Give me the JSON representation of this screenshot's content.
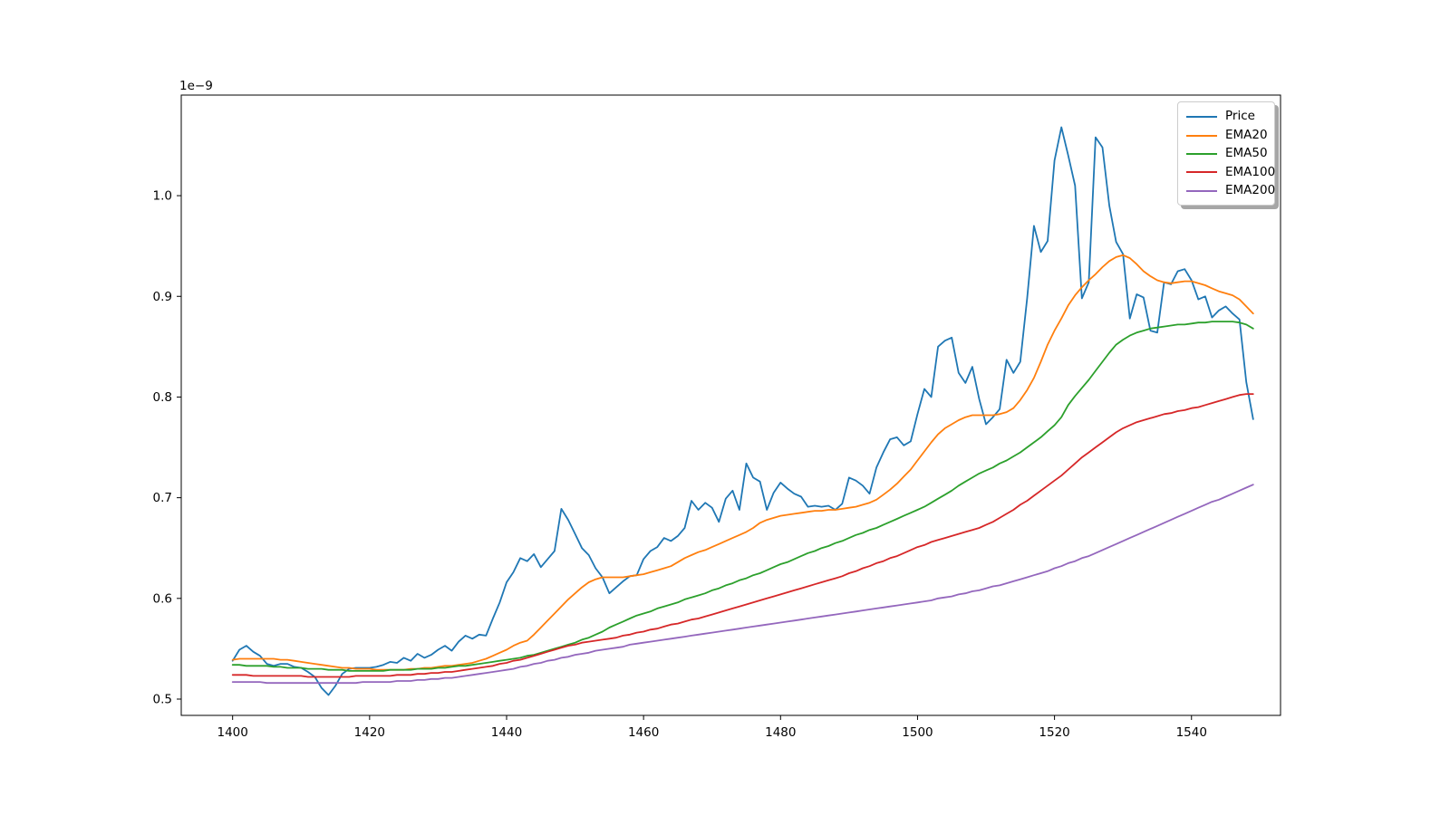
{
  "figure": {
    "background_color": "#ffffff",
    "spine_color": "#000000"
  },
  "chart_data": {
    "type": "line",
    "title": "",
    "xlabel": "",
    "ylabel": "",
    "y_offset_label": "1e−9",
    "y_unit_note": "y values are multiples of 1e-9",
    "grid": false,
    "legend_position": "upper right",
    "xlim": [
      1392.5,
      1553.0
    ],
    "ylim": [
      0.4838,
      1.0999
    ],
    "x_ticks": [
      "1400",
      "1420",
      "1440",
      "1460",
      "1480",
      "1500",
      "1520",
      "1540"
    ],
    "x_tick_values": [
      1400,
      1420,
      1440,
      1460,
      1480,
      1500,
      1520,
      1540
    ],
    "y_ticks": [
      "0.5",
      "0.6",
      "0.7",
      "0.8",
      "0.9",
      "1.0"
    ],
    "y_tick_values": [
      0.5,
      0.6,
      0.7,
      0.8,
      0.9,
      1.0
    ],
    "x_start": 1400,
    "x_step": 1,
    "series": [
      {
        "name": "Price",
        "color": "#1f77b4",
        "values": [
          0.538,
          0.549,
          0.553,
          0.547,
          0.543,
          0.535,
          0.533,
          0.535,
          0.535,
          0.532,
          0.531,
          0.527,
          0.522,
          0.511,
          0.504,
          0.513,
          0.525,
          0.53,
          0.531,
          0.531,
          0.531,
          0.532,
          0.534,
          0.537,
          0.536,
          0.541,
          0.538,
          0.545,
          0.541,
          0.544,
          0.549,
          0.553,
          0.548,
          0.557,
          0.563,
          0.56,
          0.564,
          0.563,
          0.58,
          0.596,
          0.616,
          0.626,
          0.64,
          0.637,
          0.644,
          0.631,
          0.639,
          0.647,
          0.689,
          0.678,
          0.664,
          0.65,
          0.643,
          0.63,
          0.621,
          0.605,
          0.611,
          0.617,
          0.622,
          0.623,
          0.639,
          0.647,
          0.651,
          0.66,
          0.657,
          0.662,
          0.67,
          0.697,
          0.688,
          0.695,
          0.69,
          0.676,
          0.699,
          0.707,
          0.688,
          0.734,
          0.72,
          0.716,
          0.688,
          0.705,
          0.715,
          0.709,
          0.704,
          0.701,
          0.691,
          0.692,
          0.691,
          0.692,
          0.688,
          0.694,
          0.72,
          0.717,
          0.712,
          0.704,
          0.73,
          0.745,
          0.758,
          0.76,
          0.752,
          0.756,
          0.783,
          0.808,
          0.8,
          0.85,
          0.856,
          0.859,
          0.824,
          0.814,
          0.83,
          0.798,
          0.773,
          0.78,
          0.788,
          0.837,
          0.824,
          0.835,
          0.898,
          0.97,
          0.944,
          0.955,
          1.035,
          1.068,
          1.04,
          1.01,
          0.898,
          0.914,
          1.058,
          1.048,
          0.99,
          0.954,
          0.942,
          0.878,
          0.902,
          0.899,
          0.866,
          0.864,
          0.914,
          0.912,
          0.925,
          0.927,
          0.916,
          0.897,
          0.9,
          0.879,
          0.886,
          0.89,
          0.883,
          0.877,
          0.815,
          0.778
        ]
      },
      {
        "name": "EMA20",
        "color": "#ff7f0e",
        "values": [
          0.539,
          0.54,
          0.54,
          0.54,
          0.54,
          0.54,
          0.54,
          0.539,
          0.539,
          0.538,
          0.537,
          0.536,
          0.535,
          0.534,
          0.533,
          0.532,
          0.531,
          0.531,
          0.53,
          0.53,
          0.53,
          0.529,
          0.529,
          0.529,
          0.529,
          0.529,
          0.53,
          0.53,
          0.531,
          0.531,
          0.532,
          0.533,
          0.533,
          0.534,
          0.535,
          0.536,
          0.538,
          0.54,
          0.543,
          0.546,
          0.549,
          0.553,
          0.556,
          0.558,
          0.564,
          0.571,
          0.578,
          0.585,
          0.592,
          0.599,
          0.605,
          0.611,
          0.616,
          0.619,
          0.621,
          0.621,
          0.621,
          0.621,
          0.622,
          0.623,
          0.624,
          0.626,
          0.628,
          0.63,
          0.632,
          0.636,
          0.64,
          0.643,
          0.646,
          0.648,
          0.651,
          0.654,
          0.657,
          0.66,
          0.663,
          0.666,
          0.67,
          0.675,
          0.678,
          0.68,
          0.682,
          0.683,
          0.684,
          0.685,
          0.686,
          0.687,
          0.687,
          0.688,
          0.688,
          0.689,
          0.69,
          0.691,
          0.693,
          0.695,
          0.698,
          0.703,
          0.708,
          0.714,
          0.721,
          0.728,
          0.737,
          0.746,
          0.755,
          0.763,
          0.769,
          0.773,
          0.777,
          0.78,
          0.782,
          0.782,
          0.782,
          0.782,
          0.783,
          0.785,
          0.789,
          0.797,
          0.807,
          0.819,
          0.835,
          0.852,
          0.866,
          0.878,
          0.891,
          0.901,
          0.909,
          0.916,
          0.922,
          0.929,
          0.935,
          0.939,
          0.941,
          0.938,
          0.932,
          0.925,
          0.92,
          0.916,
          0.914,
          0.913,
          0.914,
          0.915,
          0.915,
          0.913,
          0.911,
          0.908,
          0.905,
          0.903,
          0.901,
          0.897,
          0.89,
          0.883
        ]
      },
      {
        "name": "EMA50",
        "color": "#2ca02c",
        "values": [
          0.534,
          0.534,
          0.533,
          0.533,
          0.533,
          0.533,
          0.532,
          0.532,
          0.531,
          0.531,
          0.531,
          0.53,
          0.53,
          0.53,
          0.529,
          0.529,
          0.529,
          0.528,
          0.528,
          0.528,
          0.528,
          0.528,
          0.528,
          0.529,
          0.529,
          0.529,
          0.529,
          0.53,
          0.53,
          0.53,
          0.531,
          0.531,
          0.532,
          0.533,
          0.533,
          0.534,
          0.535,
          0.536,
          0.537,
          0.538,
          0.539,
          0.54,
          0.541,
          0.543,
          0.544,
          0.546,
          0.548,
          0.55,
          0.552,
          0.554,
          0.556,
          0.559,
          0.561,
          0.564,
          0.567,
          0.571,
          0.574,
          0.577,
          0.58,
          0.583,
          0.585,
          0.587,
          0.59,
          0.592,
          0.594,
          0.596,
          0.599,
          0.601,
          0.603,
          0.605,
          0.608,
          0.61,
          0.613,
          0.615,
          0.618,
          0.62,
          0.623,
          0.625,
          0.628,
          0.631,
          0.634,
          0.636,
          0.639,
          0.642,
          0.645,
          0.647,
          0.65,
          0.652,
          0.655,
          0.657,
          0.66,
          0.663,
          0.665,
          0.668,
          0.67,
          0.673,
          0.676,
          0.679,
          0.682,
          0.685,
          0.688,
          0.691,
          0.695,
          0.699,
          0.703,
          0.707,
          0.712,
          0.716,
          0.72,
          0.724,
          0.727,
          0.73,
          0.734,
          0.737,
          0.741,
          0.745,
          0.75,
          0.755,
          0.76,
          0.766,
          0.772,
          0.78,
          0.792,
          0.801,
          0.809,
          0.817,
          0.826,
          0.835,
          0.844,
          0.852,
          0.857,
          0.861,
          0.864,
          0.866,
          0.868,
          0.869,
          0.87,
          0.871,
          0.872,
          0.872,
          0.873,
          0.874,
          0.874,
          0.875,
          0.875,
          0.875,
          0.875,
          0.874,
          0.872,
          0.868
        ]
      },
      {
        "name": "EMA100",
        "color": "#d62728",
        "values": [
          0.524,
          0.524,
          0.524,
          0.523,
          0.523,
          0.523,
          0.523,
          0.523,
          0.523,
          0.523,
          0.523,
          0.522,
          0.522,
          0.522,
          0.522,
          0.522,
          0.522,
          0.522,
          0.523,
          0.523,
          0.523,
          0.523,
          0.523,
          0.523,
          0.524,
          0.524,
          0.524,
          0.525,
          0.525,
          0.526,
          0.526,
          0.527,
          0.527,
          0.528,
          0.529,
          0.53,
          0.531,
          0.532,
          0.533,
          0.535,
          0.536,
          0.538,
          0.539,
          0.541,
          0.543,
          0.545,
          0.547,
          0.549,
          0.551,
          0.553,
          0.554,
          0.556,
          0.557,
          0.558,
          0.559,
          0.56,
          0.561,
          0.563,
          0.564,
          0.566,
          0.567,
          0.569,
          0.57,
          0.572,
          0.574,
          0.575,
          0.577,
          0.579,
          0.58,
          0.582,
          0.584,
          0.586,
          0.588,
          0.59,
          0.592,
          0.594,
          0.596,
          0.598,
          0.6,
          0.602,
          0.604,
          0.606,
          0.608,
          0.61,
          0.612,
          0.614,
          0.616,
          0.618,
          0.62,
          0.622,
          0.625,
          0.627,
          0.63,
          0.632,
          0.635,
          0.637,
          0.64,
          0.642,
          0.645,
          0.648,
          0.651,
          0.653,
          0.656,
          0.658,
          0.66,
          0.662,
          0.664,
          0.666,
          0.668,
          0.67,
          0.673,
          0.676,
          0.68,
          0.684,
          0.688,
          0.693,
          0.697,
          0.702,
          0.707,
          0.712,
          0.717,
          0.722,
          0.728,
          0.734,
          0.74,
          0.745,
          0.75,
          0.755,
          0.76,
          0.765,
          0.769,
          0.772,
          0.775,
          0.777,
          0.779,
          0.781,
          0.783,
          0.784,
          0.786,
          0.787,
          0.789,
          0.79,
          0.792,
          0.794,
          0.796,
          0.798,
          0.8,
          0.802,
          0.803,
          0.803
        ]
      },
      {
        "name": "EMA200",
        "color": "#9467bd",
        "values": [
          0.517,
          0.517,
          0.517,
          0.517,
          0.517,
          0.516,
          0.516,
          0.516,
          0.516,
          0.516,
          0.516,
          0.516,
          0.516,
          0.516,
          0.516,
          0.516,
          0.516,
          0.516,
          0.516,
          0.517,
          0.517,
          0.517,
          0.517,
          0.517,
          0.518,
          0.518,
          0.518,
          0.519,
          0.519,
          0.52,
          0.52,
          0.521,
          0.521,
          0.522,
          0.523,
          0.524,
          0.525,
          0.526,
          0.527,
          0.528,
          0.529,
          0.53,
          0.532,
          0.533,
          0.535,
          0.536,
          0.538,
          0.539,
          0.541,
          0.542,
          0.544,
          0.545,
          0.546,
          0.548,
          0.549,
          0.55,
          0.551,
          0.552,
          0.554,
          0.555,
          0.556,
          0.557,
          0.558,
          0.559,
          0.56,
          0.561,
          0.562,
          0.563,
          0.564,
          0.565,
          0.566,
          0.567,
          0.568,
          0.569,
          0.57,
          0.571,
          0.572,
          0.573,
          0.574,
          0.575,
          0.576,
          0.577,
          0.578,
          0.579,
          0.58,
          0.581,
          0.582,
          0.583,
          0.584,
          0.585,
          0.586,
          0.587,
          0.588,
          0.589,
          0.59,
          0.591,
          0.592,
          0.593,
          0.594,
          0.595,
          0.596,
          0.597,
          0.598,
          0.6,
          0.601,
          0.602,
          0.604,
          0.605,
          0.607,
          0.608,
          0.61,
          0.612,
          0.613,
          0.615,
          0.617,
          0.619,
          0.621,
          0.623,
          0.625,
          0.627,
          0.63,
          0.632,
          0.635,
          0.637,
          0.64,
          0.642,
          0.645,
          0.648,
          0.651,
          0.654,
          0.657,
          0.66,
          0.663,
          0.666,
          0.669,
          0.672,
          0.675,
          0.678,
          0.681,
          0.684,
          0.687,
          0.69,
          0.693,
          0.696,
          0.698,
          0.701,
          0.704,
          0.707,
          0.71,
          0.713
        ]
      }
    ]
  }
}
